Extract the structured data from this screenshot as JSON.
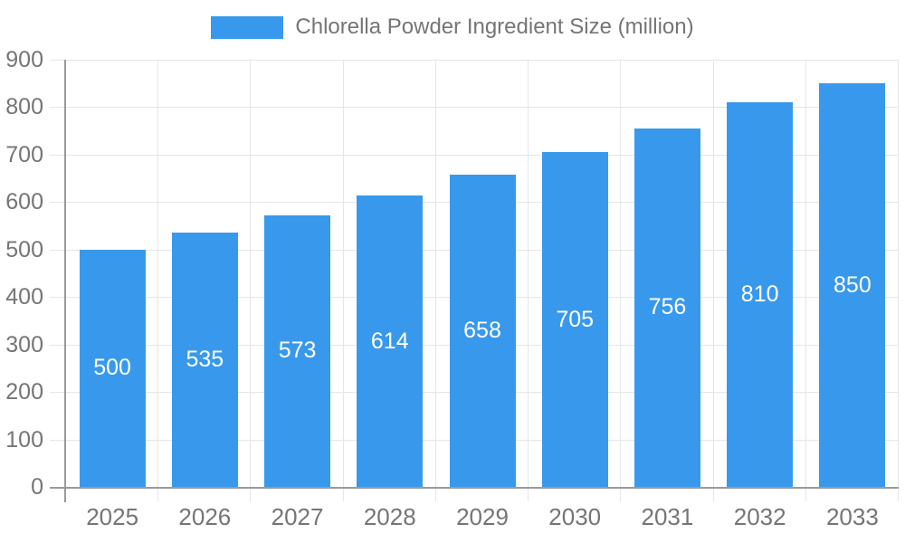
{
  "legend": {
    "label": "Chlorella Powder Ingredient Size (million)"
  },
  "chart_data": {
    "type": "bar",
    "title": "Chlorella Powder Ingredient Size (million)",
    "series_name": "Chlorella Powder Ingredient Size (million)",
    "categories": [
      "2025",
      "2026",
      "2027",
      "2028",
      "2029",
      "2030",
      "2031",
      "2032",
      "2033"
    ],
    "values": [
      500,
      535,
      573,
      614,
      658,
      705,
      756,
      810,
      850
    ],
    "xlabel": "",
    "ylabel": "",
    "ylim": [
      0,
      900
    ],
    "ytick_step": 100,
    "grid": true,
    "legend_position": "top",
    "bar_value_labels": "inside-center",
    "colors": {
      "bar": "#3899EC",
      "grid": "#E6E6E6",
      "axis": "#9A9A9A",
      "text": "#757575",
      "bar_label": "#FFFFFF"
    }
  }
}
